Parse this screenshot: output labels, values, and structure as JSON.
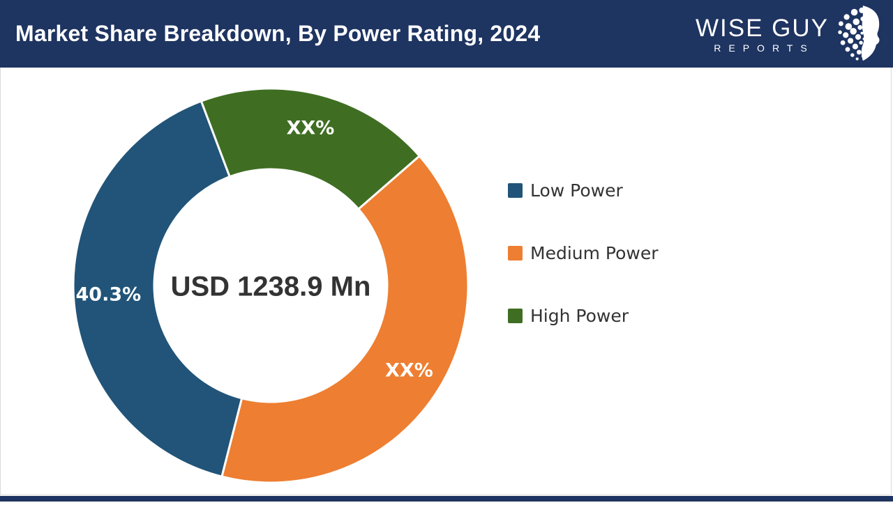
{
  "header": {
    "title": "Market Share Breakdown, By Power Rating, 2024",
    "logo": {
      "primary": "WISE GUY",
      "secondary": "REPORTS"
    }
  },
  "watermark": {
    "line1": "WISE GUY",
    "line2": "R E P O R T S"
  },
  "chart_data": {
    "type": "donut",
    "title": "Market Share Breakdown, By Power Rating, 2024",
    "center_label": "USD 1238.9 Mn",
    "start_angle_deg": 110.6,
    "direction": "counterclockwise",
    "legend_position": "right",
    "inner_radius_ratio": 0.59,
    "segments": [
      {
        "name": "Low Power",
        "label": "40.3%",
        "value": 40.3,
        "color": "#215478"
      },
      {
        "name": "Medium Power",
        "label": "XX%",
        "value": 40.4,
        "color": "#ee7e31"
      },
      {
        "name": "High Power",
        "label": "XX%",
        "value": 19.3,
        "color": "#3f6e22"
      }
    ]
  },
  "colors": {
    "header_bg": "#1e3461",
    "footer_bg": "#1e3461",
    "page_bg": "#ffffff",
    "slice_label_text": "#ffffff",
    "center_text": "#333333",
    "legend_text": "#333333",
    "watermark": "#f2f2f2",
    "border": "#d9d9d9"
  }
}
